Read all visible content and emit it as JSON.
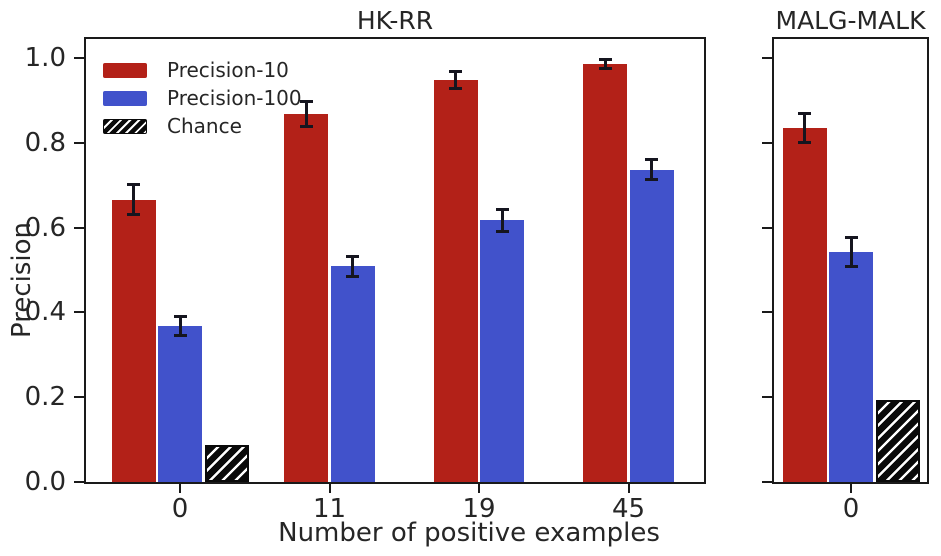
{
  "figure": {
    "ylabel": "Precision",
    "xlabel": "Number of positive examples"
  },
  "colors": {
    "precision10": "#b32118",
    "precision100": "#4152cb",
    "chance": "#0a0a0a",
    "hatch_stripe": "#ffffff",
    "axis": "#1a1a1a",
    "text": "#262626"
  },
  "chart_data": [
    {
      "type": "bar",
      "title": "HK-RR",
      "categories": [
        "0",
        "11",
        "19",
        "45"
      ],
      "series": [
        {
          "name": "Precision-10",
          "color_key": "precision10",
          "hatched": false,
          "values": [
            0.666,
            0.868,
            0.948,
            0.986
          ],
          "errors": [
            0.037,
            0.03,
            0.022,
            0.012
          ]
        },
        {
          "name": "Precision-100",
          "color_key": "precision100",
          "hatched": false,
          "values": [
            0.368,
            0.509,
            0.617,
            0.737
          ],
          "errors": [
            0.024,
            0.025,
            0.028,
            0.024
          ]
        },
        {
          "name": "Chance",
          "color_key": "chance",
          "hatched": true,
          "values": [
            0.087,
            null,
            null,
            null
          ],
          "errors": [
            null,
            null,
            null,
            null
          ]
        }
      ],
      "ylim": [
        0,
        1.045
      ],
      "yticks": [
        0.0,
        0.2,
        0.4,
        0.6,
        0.8,
        1.0
      ],
      "yticklabels": [
        "0.0",
        "0.2",
        "0.4",
        "0.6",
        "0.8",
        "1.0"
      ],
      "show_ytick_labels": true,
      "grid": false,
      "legend": true,
      "legend_position": "upper left"
    },
    {
      "type": "bar",
      "title": "MALG-MALK",
      "categories": [
        "0"
      ],
      "series": [
        {
          "name": "Precision-10",
          "color_key": "precision10",
          "hatched": false,
          "values": [
            0.835
          ],
          "errors": [
            0.035
          ]
        },
        {
          "name": "Precision-100",
          "color_key": "precision100",
          "hatched": false,
          "values": [
            0.542
          ],
          "errors": [
            0.035
          ]
        },
        {
          "name": "Chance",
          "color_key": "chance",
          "hatched": true,
          "values": [
            0.194
          ],
          "errors": [
            null
          ]
        }
      ],
      "ylim": [
        0,
        1.045
      ],
      "yticks": [
        0.0,
        0.2,
        0.4,
        0.6,
        0.8,
        1.0
      ],
      "yticklabels": [
        "",
        "",
        "",
        "",
        "",
        ""
      ],
      "show_ytick_labels": false,
      "grid": false,
      "legend": false
    }
  ]
}
